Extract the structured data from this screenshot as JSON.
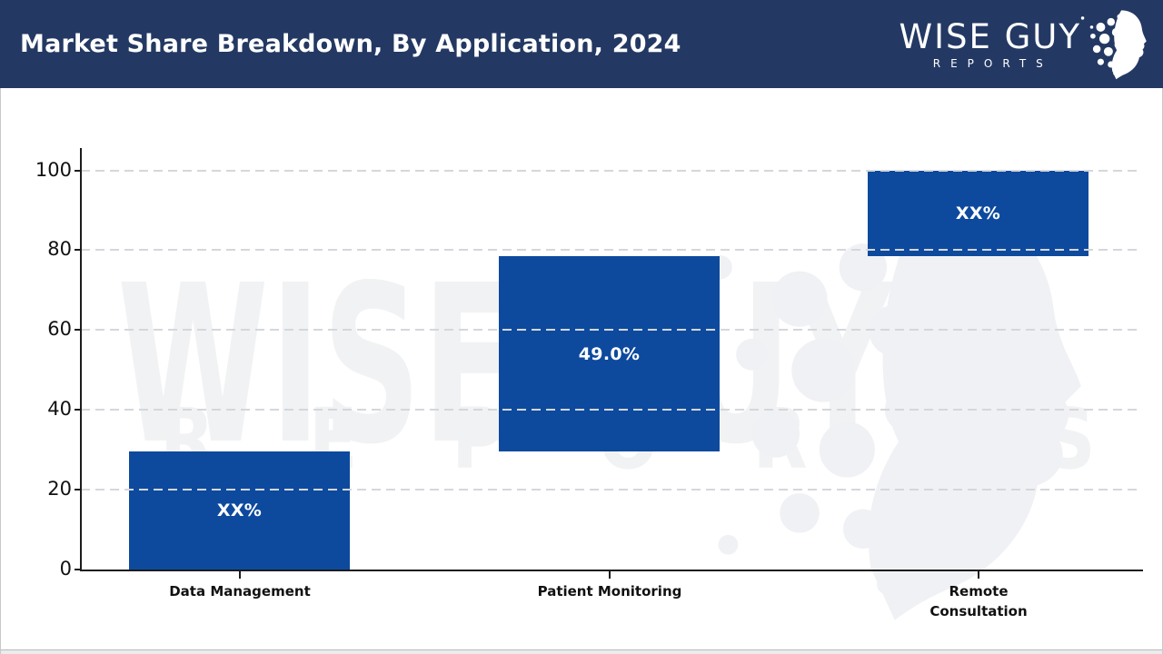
{
  "header": {
    "title": "Market Share Breakdown, By Application, 2024",
    "logo": {
      "line1": "WISE GUY",
      "line2": "REPORTS"
    }
  },
  "watermark": {
    "line1": "WISE GUY",
    "line2": "R E P O R T S"
  },
  "chart_data": {
    "type": "bar",
    "subtype": "waterfall",
    "title": "Market Share Breakdown, By Application, 2024",
    "categories": [
      "Data Management",
      "Patient Monitoring",
      "Remote\nConsultation"
    ],
    "segments": [
      {
        "category": "Data Management",
        "start": 0,
        "end": 29.5,
        "label": "XX%"
      },
      {
        "category": "Patient Monitoring",
        "start": 29.5,
        "end": 78.5,
        "label": "49.0%"
      },
      {
        "category": "Remote Consultation",
        "start": 78.5,
        "end": 100,
        "label": "XX%"
      }
    ],
    "ylim": [
      0,
      100
    ],
    "yticks": [
      0,
      20,
      40,
      60,
      80,
      100
    ],
    "grid": "horizontal-dashed",
    "legend": "none",
    "bar_color": "#0d4a9e",
    "bar_label_color": "#ffffff",
    "axis_color": "#1c1c1c"
  },
  "colors": {
    "header_bg": "#233963",
    "bar": "#0d4a9e",
    "gridline": "#d4d7dc",
    "watermark": "#f1f2f4"
  }
}
